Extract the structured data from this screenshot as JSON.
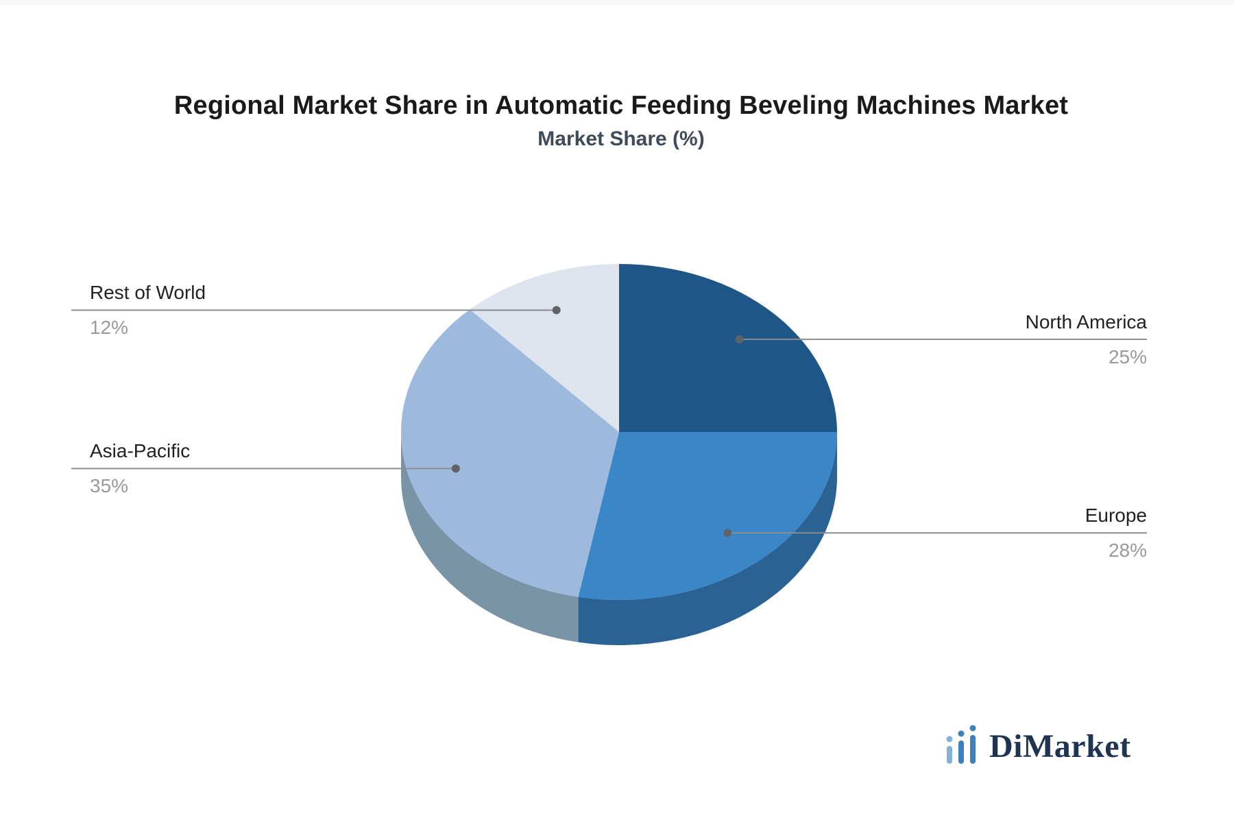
{
  "page": {
    "background": "#ffffff",
    "top_strip_color": "#f7f8f9"
  },
  "header": {
    "title": "Regional Market Share in Automatic Feeding Beveling Machines Market",
    "subtitle": "Market Share (%)"
  },
  "chart_data": {
    "type": "pie",
    "title": "Regional Market Share in Automatic Feeding Beveling Machines Market",
    "subtitle": "Market Share (%)",
    "unit": "%",
    "style": "3d-pie",
    "start_angle_deg": 90,
    "direction": "clockwise",
    "legend_position": "callout-labels",
    "segments": [
      {
        "label": "North America",
        "value": 25,
        "value_label": "25%",
        "color": "#1e5687",
        "side_color": "#17446c",
        "label_side": "right"
      },
      {
        "label": "Europe",
        "value": 28,
        "value_label": "28%",
        "color": "#3a86c6",
        "side_color": "#2a6294",
        "label_side": "right"
      },
      {
        "label": "Asia-Pacific",
        "value": 35,
        "value_label": "35%",
        "color": "#9dbadc",
        "side_color": "#7994a6",
        "label_side": "left"
      },
      {
        "label": "Rest of World",
        "value": 12,
        "value_label": "12%",
        "color": "#dde4ee",
        "side_color": "#b5c4d4",
        "label_side": "left"
      }
    ]
  },
  "styles": {
    "title_color": "#1a1a1a",
    "subtitle_color": "#3e4b59",
    "label_color": "#212121",
    "value_color": "#999999",
    "leader_line_color": "#8a8d91",
    "leader_dot_color": "#5f6368"
  },
  "logo": {
    "text": "DiMarket",
    "icon": "mini-bar-chart-icon",
    "icon_color": "#3c80bd",
    "icon_color_light": "#82b2da",
    "text_color": "#1e3450"
  }
}
